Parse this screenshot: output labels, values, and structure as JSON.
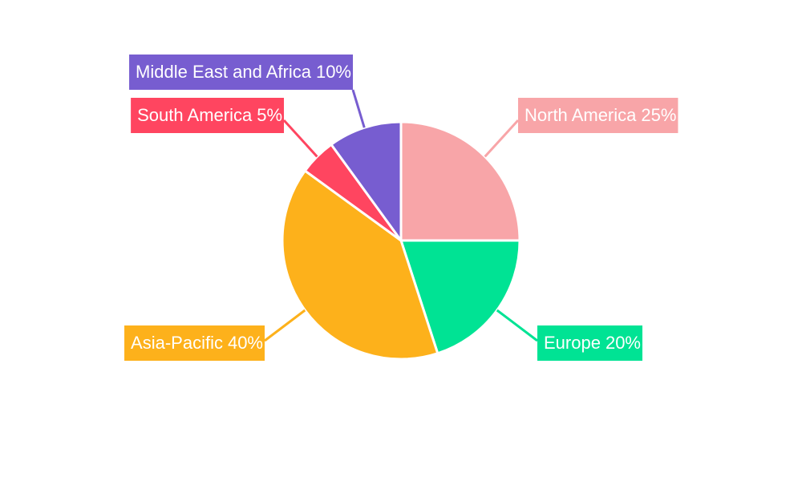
{
  "chart_data": {
    "type": "pie",
    "categories": [
      "North America",
      "Europe",
      "Asia-Pacific",
      "South America",
      "Middle East and Africa"
    ],
    "values": [
      25,
      20,
      40,
      5,
      10
    ],
    "value_labels": [
      "25%",
      "20%",
      "40%",
      "5%",
      "10%"
    ],
    "colors": [
      "#f8a5a8",
      "#00e394",
      "#fdb11b",
      "#ff4560",
      "#775dd0"
    ]
  }
}
